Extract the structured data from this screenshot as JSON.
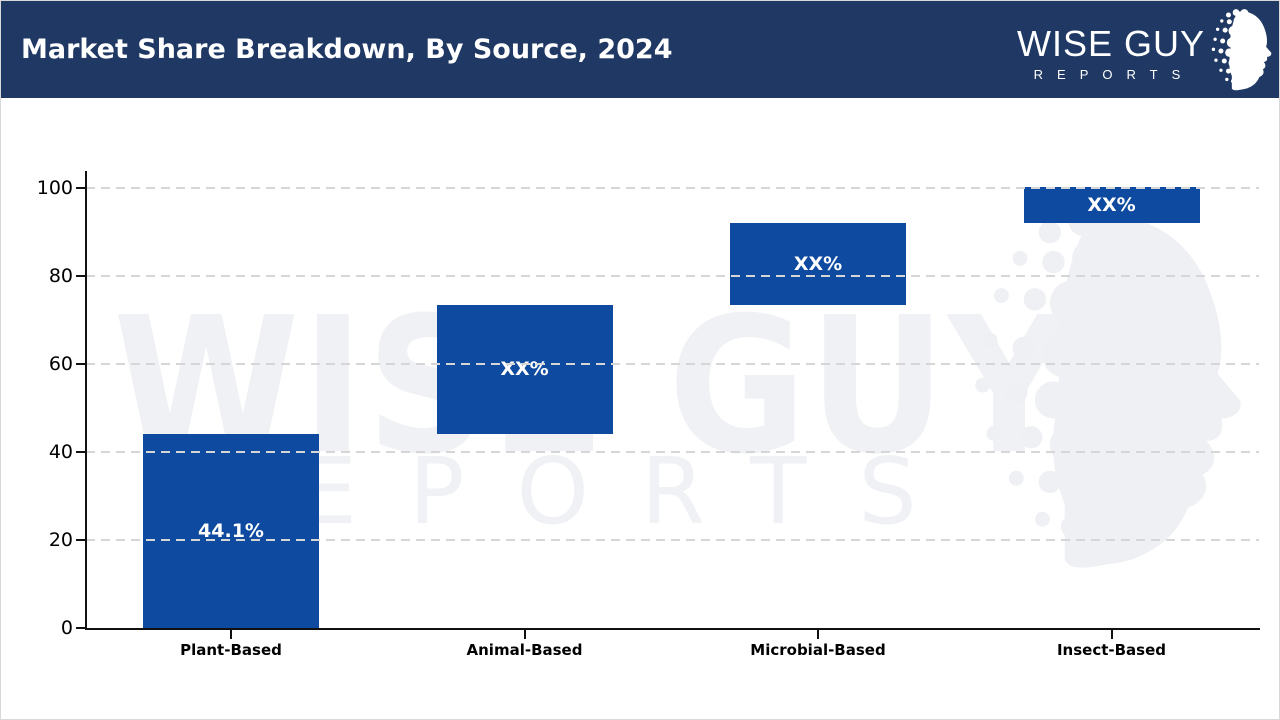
{
  "header": {
    "title": "Market Share Breakdown, By Source, 2024",
    "bg_color": "#1F3864",
    "logo": {
      "line1": "WISE GUY",
      "line2": "REPORTS"
    }
  },
  "watermark": {
    "line1": "WISE GUY",
    "line2": "REPORTS"
  },
  "chart_data": {
    "type": "bar",
    "subtype": "waterfall",
    "title": "Market Share Breakdown, By Source, 2024",
    "categories": [
      "Plant-Based",
      "Animal-Based",
      "Microbial-Based",
      "Insect-Based"
    ],
    "segments": [
      {
        "category": "Plant-Based",
        "start": 0,
        "end": 44.1,
        "value": 44.1,
        "label": "44.1%"
      },
      {
        "category": "Animal-Based",
        "start": 44.1,
        "end": 73.5,
        "value": 29.4,
        "label": "XX%"
      },
      {
        "category": "Microbial-Based",
        "start": 73.5,
        "end": 92.0,
        "value": 18.5,
        "label": "XX%"
      },
      {
        "category": "Insect-Based",
        "start": 92.0,
        "end": 100.3,
        "value": 8.3,
        "label": "XX%"
      }
    ],
    "yticks": [
      0,
      20,
      40,
      60,
      80,
      100
    ],
    "ylim": [
      0,
      104
    ],
    "xlabel": "",
    "ylabel": "",
    "grid": true,
    "grid_style": "dashed",
    "legend": "none",
    "bar_color": "#0E4A9F",
    "value_label_color": "#FFFFFF",
    "axis_color": "#111111"
  }
}
